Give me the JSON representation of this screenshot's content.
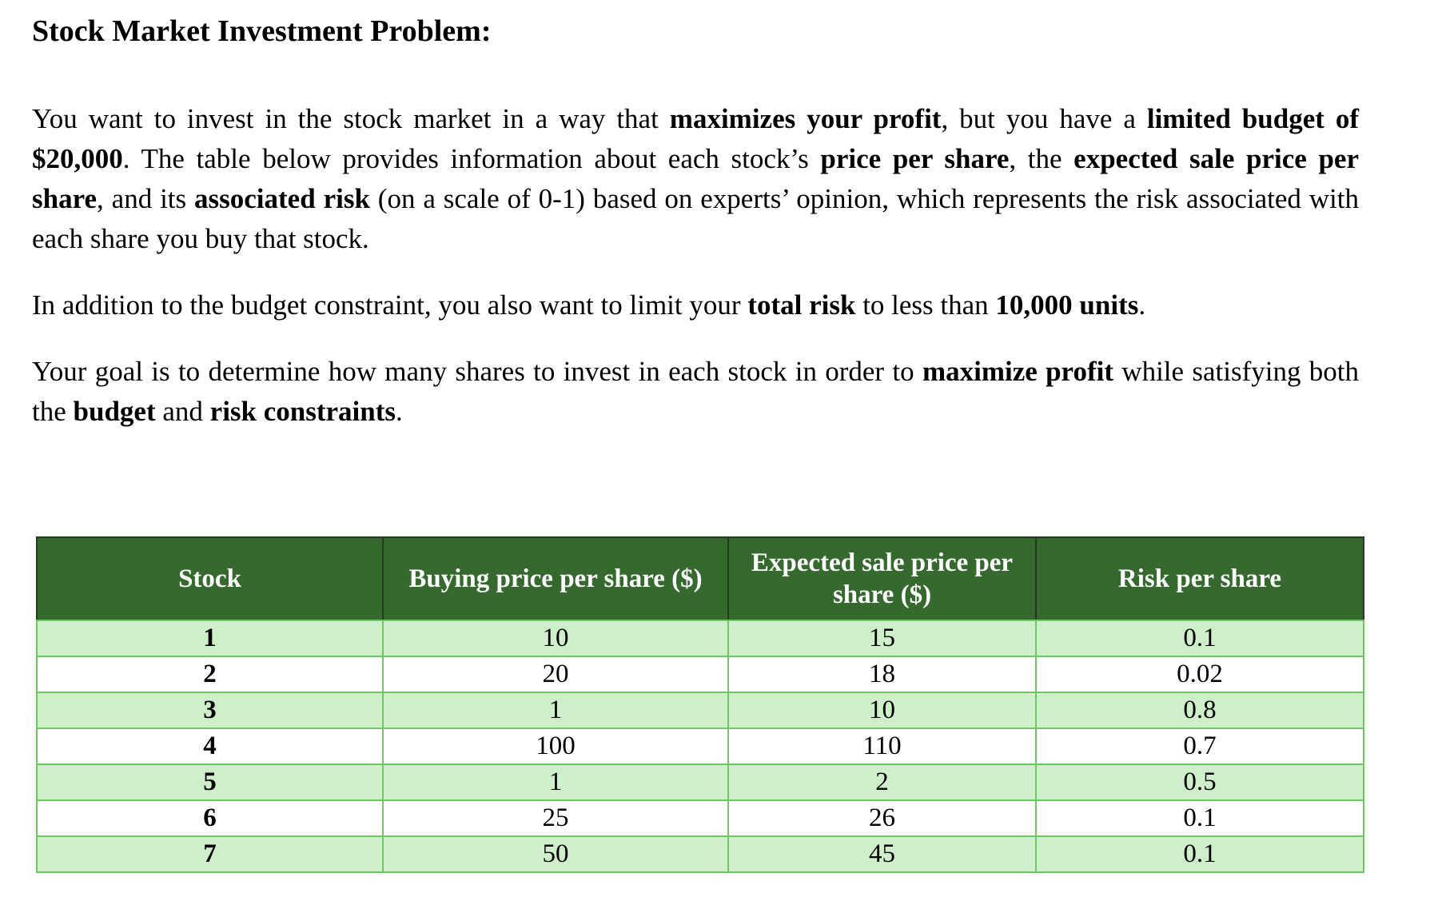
{
  "document": {
    "title": "Stock Market Investment Problem:",
    "paragraphs": [
      {
        "runs": [
          {
            "text": "You want to invest in the stock market in a way that ",
            "bold": false
          },
          {
            "text": "maximizes your profit",
            "bold": true
          },
          {
            "text": ", but you have a ",
            "bold": false
          },
          {
            "text": "limited budget of $20,000",
            "bold": true
          },
          {
            "text": ". The table below provides information about each stock’s ",
            "bold": false
          },
          {
            "text": "price per share",
            "bold": true
          },
          {
            "text": ", the ",
            "bold": false
          },
          {
            "text": "expected sale price per share",
            "bold": true
          },
          {
            "text": ", and its ",
            "bold": false
          },
          {
            "text": "associated risk",
            "bold": true
          },
          {
            "text": " (on a scale of 0-1) based on experts’ opinion, which represents the risk associated with each share you buy that stock.",
            "bold": false
          }
        ]
      },
      {
        "runs": [
          {
            "text": "In addition to the budget constraint, you also want to limit your ",
            "bold": false
          },
          {
            "text": "total risk",
            "bold": true
          },
          {
            "text": " to less than ",
            "bold": false
          },
          {
            "text": "10,000 units",
            "bold": true
          },
          {
            "text": ".",
            "bold": false
          }
        ]
      },
      {
        "runs": [
          {
            "text": "Your goal is to determine how many shares to invest in each stock in order to ",
            "bold": false
          },
          {
            "text": "maximize profit",
            "bold": true
          },
          {
            "text": " while satisfying both the ",
            "bold": false
          },
          {
            "text": "budget",
            "bold": true
          },
          {
            "text": " and ",
            "bold": false
          },
          {
            "text": "risk constraints",
            "bold": true
          },
          {
            "text": ".",
            "bold": false
          }
        ]
      }
    ]
  },
  "table": {
    "headers": [
      "Stock",
      "Buying price per share ($)",
      "Expected sale price per share ($)",
      "Risk per share"
    ],
    "rows": [
      [
        "1",
        "10",
        "15",
        "0.1"
      ],
      [
        "2",
        "20",
        "18",
        "0.02"
      ],
      [
        "3",
        "1",
        "10",
        "0.8"
      ],
      [
        "4",
        "100",
        "110",
        "0.7"
      ],
      [
        "5",
        "1",
        "2",
        "0.5"
      ],
      [
        "6",
        "25",
        "26",
        "0.1"
      ],
      [
        "7",
        "50",
        "45",
        "0.1"
      ]
    ]
  },
  "colors": {
    "header_bg": "#35692e",
    "header_text": "#ffffff",
    "row_alt_bg": "#cfeeca",
    "row_bg": "#ffffff",
    "body_border": "#6cc862",
    "header_border": "#223a1d",
    "text": "#000000",
    "page_bg": "#ffffff"
  }
}
